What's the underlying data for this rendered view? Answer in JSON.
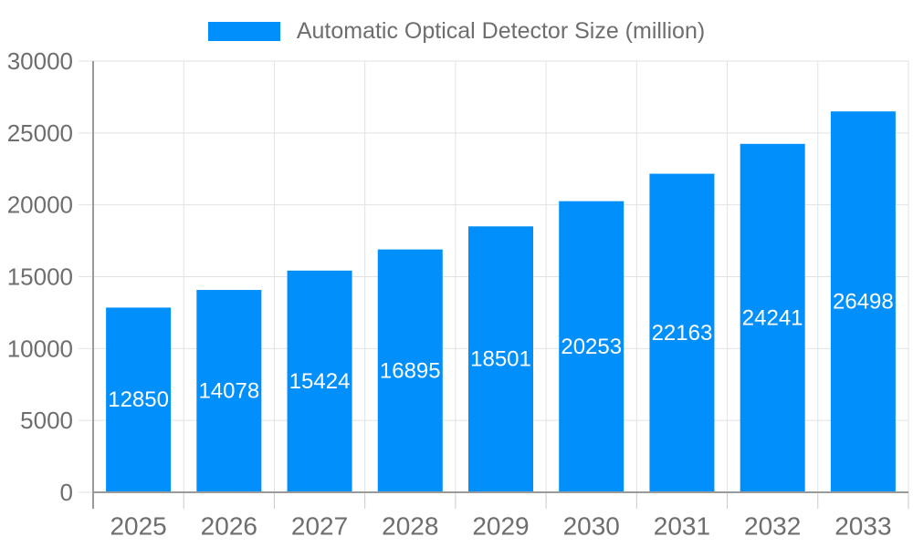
{
  "chart_data": {
    "type": "bar",
    "title": "Automatic Optical Detector Size (million)",
    "categories": [
      "2025",
      "2026",
      "2027",
      "2028",
      "2029",
      "2030",
      "2031",
      "2032",
      "2033"
    ],
    "values": [
      12850,
      14078,
      15424,
      16895,
      18501,
      20253,
      22163,
      24241,
      26498
    ],
    "xlabel": "",
    "ylabel": "",
    "ylim": [
      0,
      30000
    ],
    "ytick_interval": 5000,
    "ytick_labels": [
      "0",
      "5000",
      "10000",
      "15000",
      "20000",
      "25000",
      "30000"
    ],
    "grid": true,
    "legend_position": "top",
    "bar_color": "#008FFB",
    "value_label_color": "#ffffff",
    "axis_label_color": "#6e6e6e",
    "grid_color": "#e2e2e2",
    "tick_color": "#c9c9c9",
    "axis_line_color": "#9a9a9a",
    "background_color": "#ffffff"
  }
}
